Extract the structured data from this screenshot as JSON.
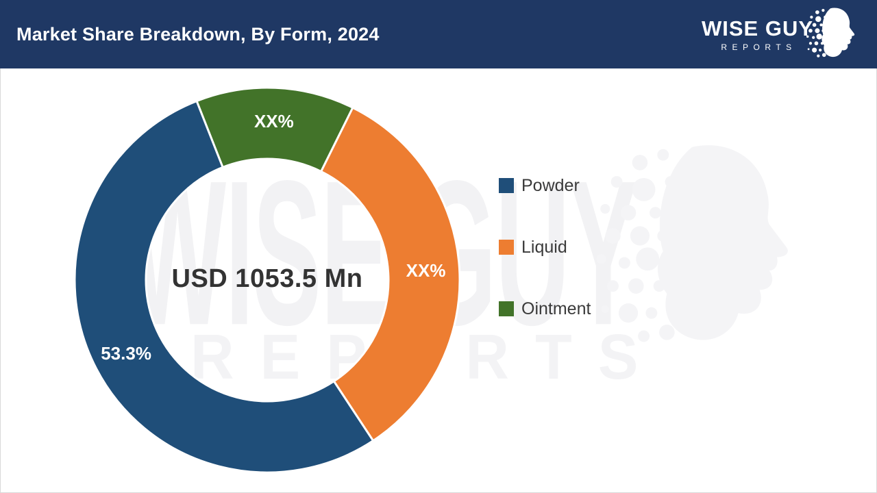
{
  "header": {
    "title": "Market Share Breakdown, By Form, 2024",
    "bg_color": "#1f3864",
    "logo": {
      "brand": "WISE GUY",
      "sub": "REPORTS"
    }
  },
  "watermark": {
    "brand": "WISE GUY",
    "sub": "REPORTS"
  },
  "chart_data": {
    "type": "pie",
    "subtype": "donut",
    "title": "Market Share Breakdown, By Form, 2024",
    "center_label": "USD 1053.5 Mn",
    "start_angle_deg": -21.5,
    "clockwise": true,
    "legend_position": "right",
    "segments_draw_order": [
      {
        "name": "Ointment",
        "value": 13.3,
        "label": "XX%",
        "color": "#427329"
      },
      {
        "name": "Liquid",
        "value": 33.4,
        "label": "XX%",
        "color": "#ed7d31"
      },
      {
        "name": "Powder",
        "value": 53.3,
        "label": "53.3%",
        "color": "#1f4e79"
      }
    ],
    "legend_order": [
      "Powder",
      "Liquid",
      "Ointment"
    ]
  }
}
